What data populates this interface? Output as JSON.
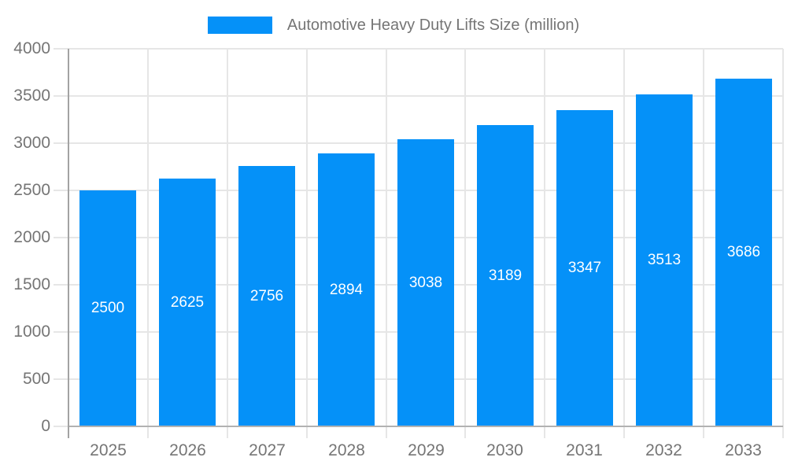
{
  "chart_data": {
    "type": "bar",
    "title": "",
    "legend": {
      "label": "Automotive Heavy Duty Lifts Size (million)",
      "position": "top"
    },
    "categories": [
      "2025",
      "2026",
      "2027",
      "2028",
      "2029",
      "2030",
      "2031",
      "2032",
      "2033"
    ],
    "series": [
      {
        "name": "Automotive Heavy Duty Lifts Size (million)",
        "values": [
          2500,
          2625,
          2756,
          2894,
          3038,
          3189,
          3347,
          3513,
          3686
        ]
      }
    ],
    "xlabel": "",
    "ylabel": "",
    "ylim": [
      0,
      4000
    ],
    "y_ticks": [
      0,
      500,
      1000,
      1500,
      2000,
      2500,
      3000,
      3500,
      4000
    ],
    "grid": true,
    "bar_labels_visible": true,
    "bar_label_position": "inside-center"
  },
  "colors": {
    "bar": "#0591f8",
    "bar_label": "#ffffff",
    "axis_text": "#757575",
    "gridline": "#e6e6e6",
    "axis_line": "#a3a3a3",
    "baseline": "#b2b2b2",
    "background": "#ffffff"
  }
}
